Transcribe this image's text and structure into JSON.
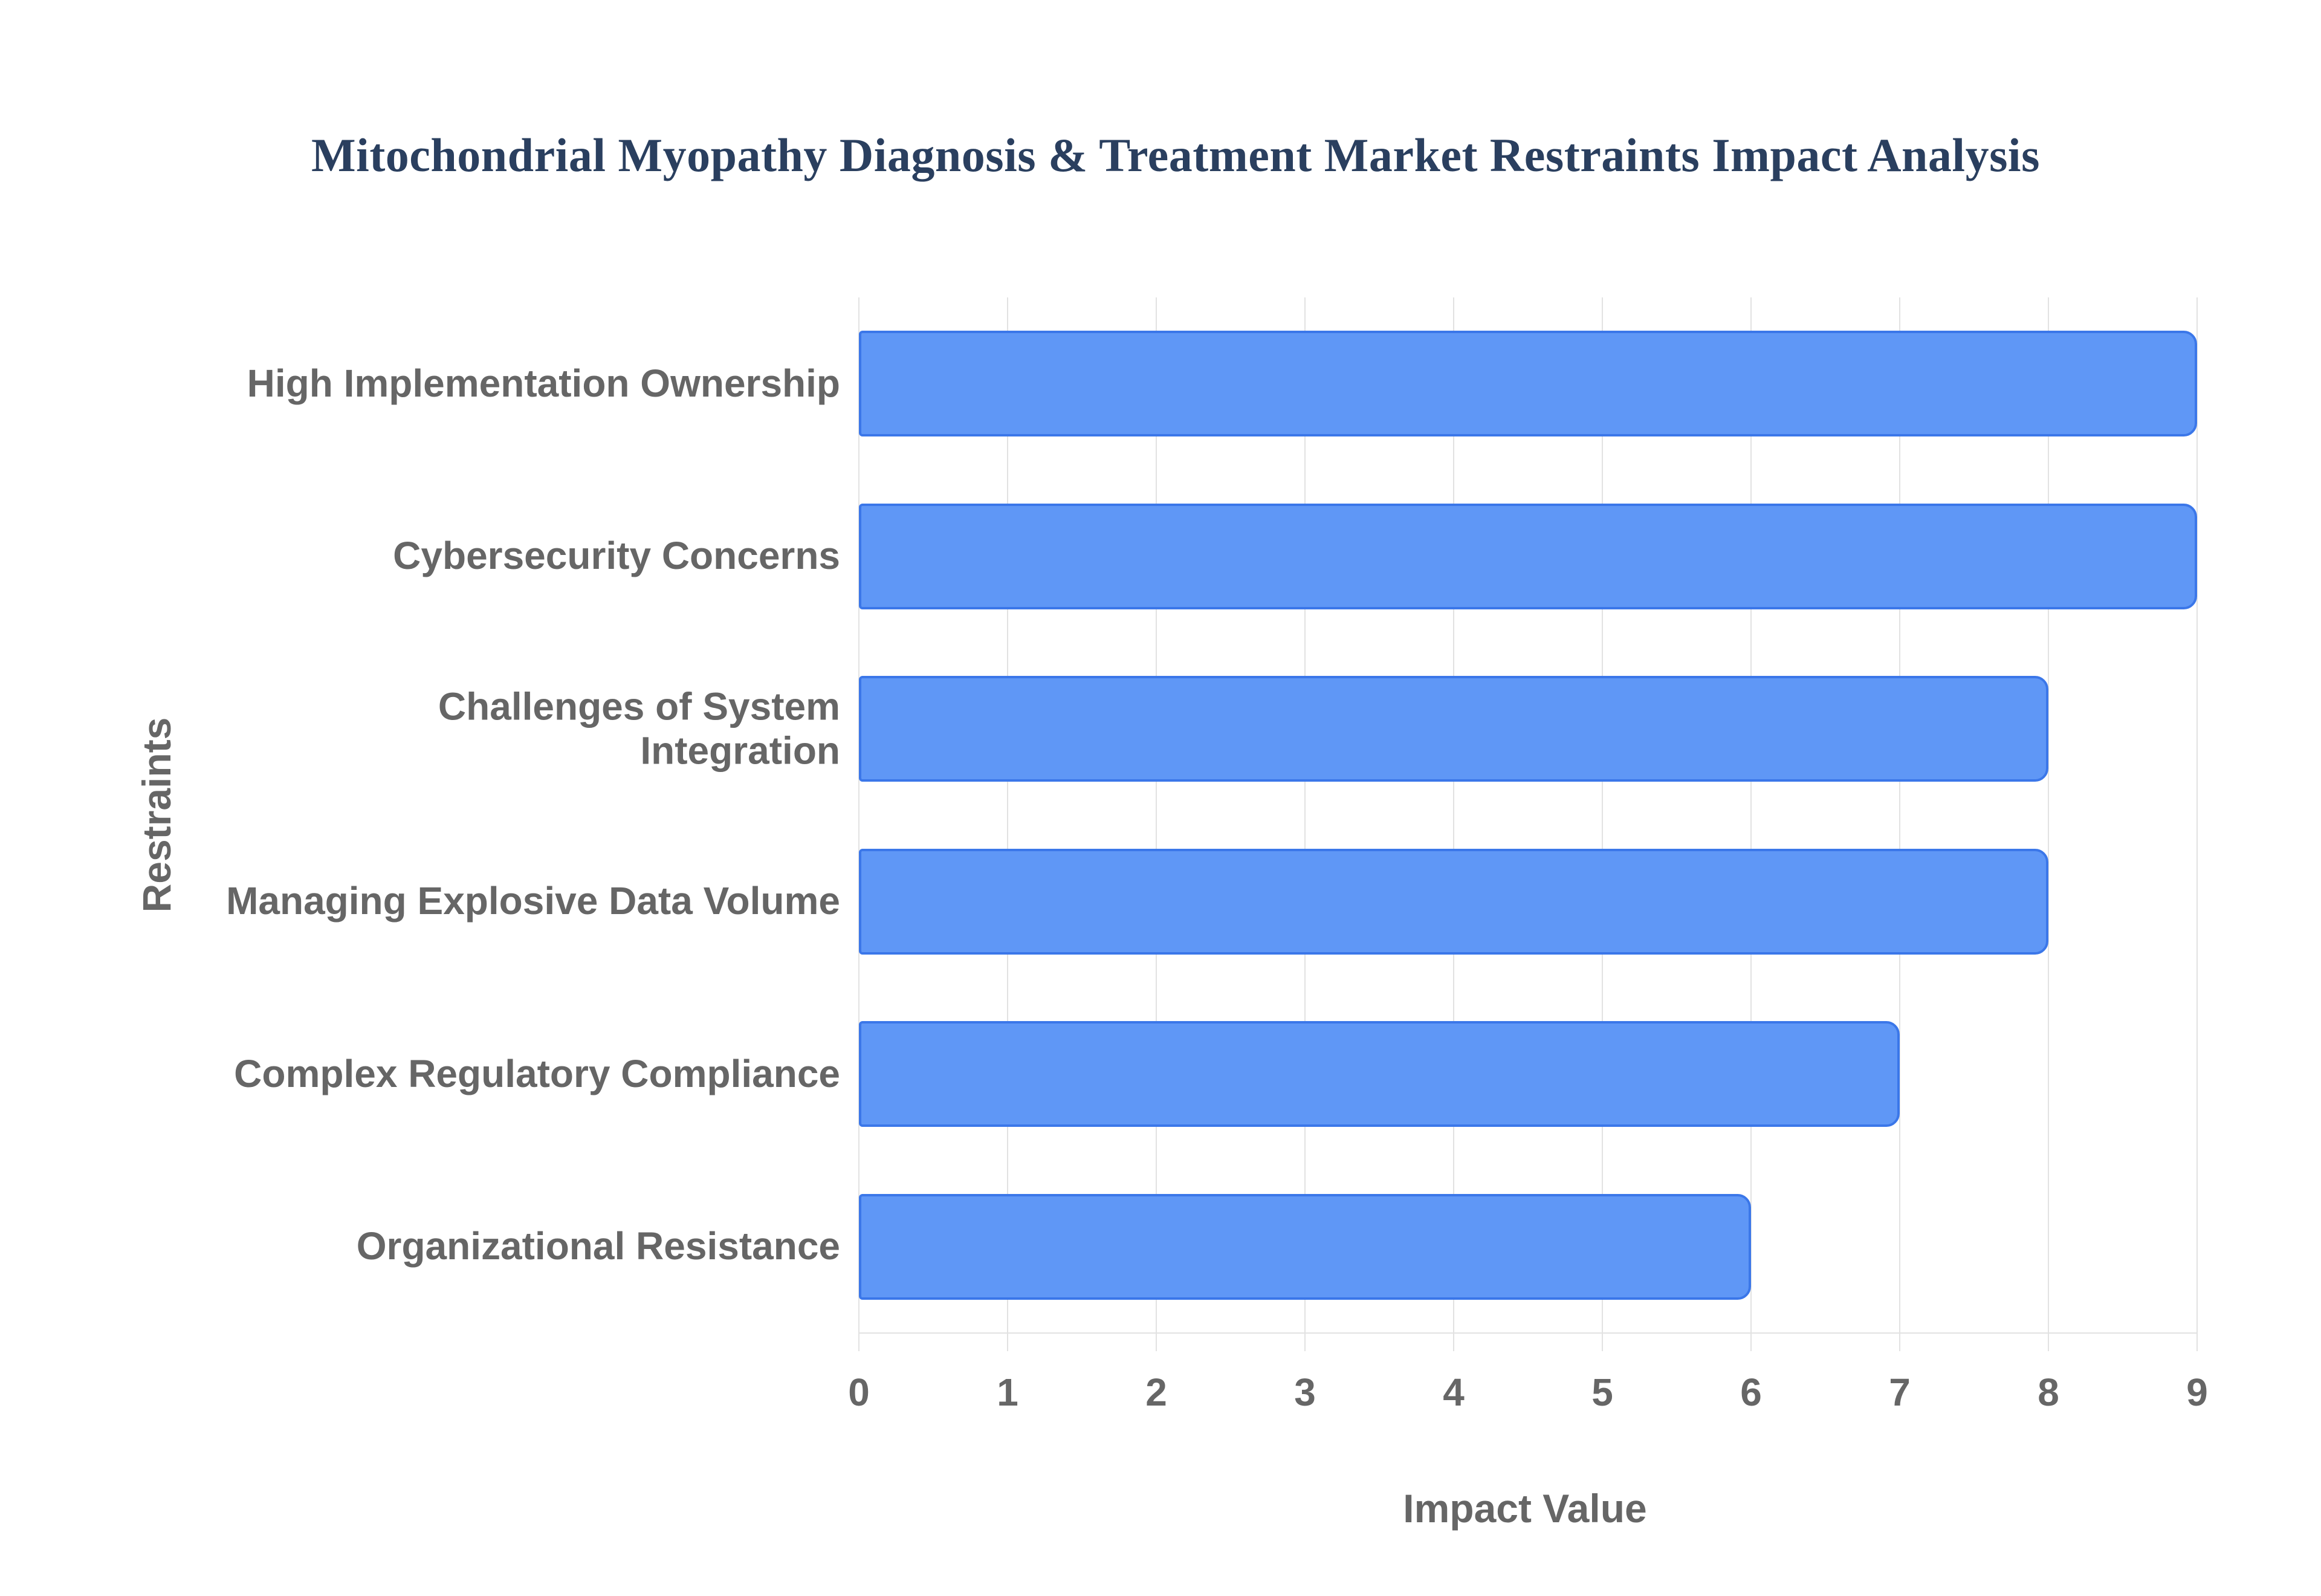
{
  "chart_data": {
    "type": "bar",
    "orientation": "horizontal",
    "title": "Mitochondrial Myopathy Diagnosis & Treatment Market Restraints Impact Analysis",
    "xlabel": "Impact Value",
    "ylabel": "Restraints",
    "categories": [
      "High Implementation Ownership",
      "Cybersecurity Concerns",
      "Challenges of System Integration",
      "Managing Explosive Data Volume",
      "Complex Regulatory Compliance",
      "Organizational Resistance"
    ],
    "category_display_lines": [
      [
        "High Implementation Ownership"
      ],
      [
        "Cybersecurity Concerns"
      ],
      [
        "Challenges of System",
        "Integration"
      ],
      [
        "Managing Explosive Data Volume"
      ],
      [
        "Complex Regulatory Compliance"
      ],
      [
        "Organizational Resistance"
      ]
    ],
    "values": [
      9,
      9,
      8,
      8,
      7,
      6
    ],
    "xticks": [
      0,
      1,
      2,
      3,
      4,
      5,
      6,
      7,
      8,
      9
    ],
    "xlim": [
      0,
      9
    ],
    "grid": true,
    "legend": false,
    "colors": {
      "bar_fill": "#5F97F6",
      "bar_border": "#3B77E9",
      "grid_line": "#e2e2e2",
      "axis_line": "#e2e2e2",
      "tick_label": "#666666",
      "axis_title": "#666666",
      "title": "#2a3f5f",
      "background": "#ffffff"
    }
  }
}
